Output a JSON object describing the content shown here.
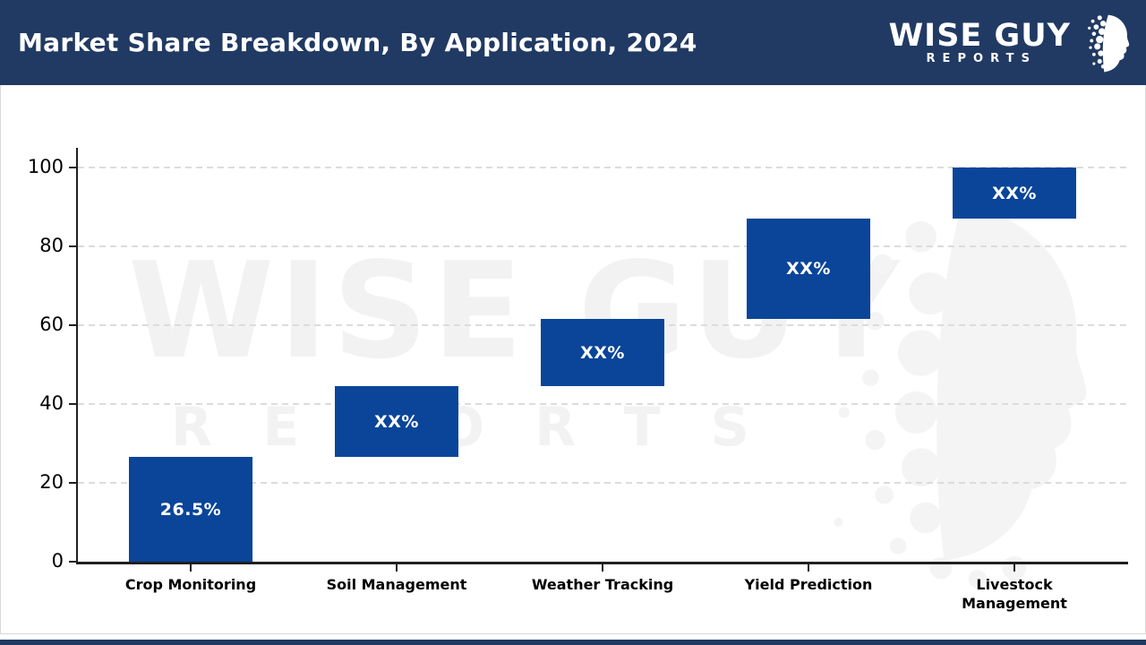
{
  "header": {
    "title": "Market Share Breakdown, By Application, 2024",
    "logo": {
      "line1": "WISE GUY",
      "line2": "REPORTS"
    }
  },
  "watermark": {
    "line1": "WISE GUY",
    "line2": "REPORTS"
  },
  "colors": {
    "header_bg": "#213a63",
    "bar": "#0a4599",
    "bar_label": "#ffffff",
    "gridline": "#dcdcdc",
    "axis": "#1f1f1f",
    "watermark": "#f2f2f2"
  },
  "chart_data": {
    "type": "bar",
    "subtype": "waterfall-floating-bars",
    "title": "Market Share Breakdown, By Application, 2024",
    "categories": [
      "Crop Monitoring",
      "Soil Management",
      "Weather Tracking",
      "Yield Prediction",
      "Livestock Management"
    ],
    "segments": [
      {
        "category": "Crop Monitoring",
        "start": 0,
        "end": 26.5,
        "label": "26.5%"
      },
      {
        "category": "Soil Management",
        "start": 26.5,
        "end": 44.5,
        "label": "XX%"
      },
      {
        "category": "Weather Tracking",
        "start": 44.5,
        "end": 61.5,
        "label": "XX%"
      },
      {
        "category": "Yield Prediction",
        "start": 61.5,
        "end": 87,
        "label": "XX%"
      },
      {
        "category": "Livestock Management",
        "start": 87,
        "end": 100,
        "label": "XX%"
      }
    ],
    "xlabel": "",
    "ylabel": "",
    "ylim": [
      0,
      105
    ],
    "yticks": [
      0,
      20,
      40,
      60,
      80,
      100
    ],
    "grid": "horizontal-dashed",
    "legend": "none"
  }
}
